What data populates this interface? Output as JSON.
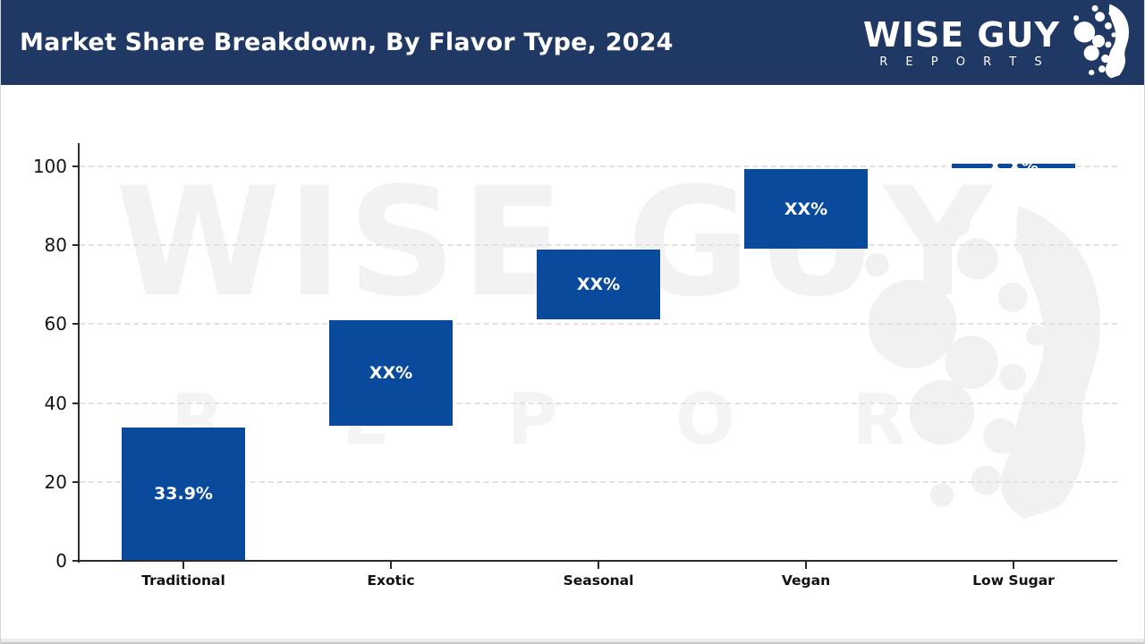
{
  "header": {
    "title": "Market Share Breakdown, By Flavor Type, 2024",
    "background_color": "#203864",
    "logo": {
      "primary": "WISE GUY",
      "secondary": "R E P O R T S"
    }
  },
  "watermark": {
    "primary": "WISE GUY",
    "secondary": "R E P O R T S"
  },
  "colors": {
    "header_background": "#203864",
    "bar_fill": "#0a4a9d",
    "bar_label": "#ffffff",
    "gridline": "#e2e2e2",
    "axis": "#2b2b2b",
    "tick_label": "#141414",
    "watermark": "#f2f2f2"
  },
  "chart_data": {
    "type": "bar",
    "variant": "waterfall",
    "title": "Market Share Breakdown, By Flavor Type, 2024",
    "categories": [
      "Traditional",
      "Exotic",
      "Seasonal",
      "Vegan",
      "Low Sugar"
    ],
    "bars": [
      {
        "category": "Traditional",
        "start": 0,
        "end": 33.9,
        "value": 33.9,
        "label": "33.9%"
      },
      {
        "category": "Exotic",
        "start": 34.2,
        "end": 61.1,
        "value": 26.9,
        "label": "XX%"
      },
      {
        "category": "Seasonal",
        "start": 61.3,
        "end": 78.9,
        "value": 17.6,
        "label": "XX%"
      },
      {
        "category": "Vegan",
        "start": 79.1,
        "end": 99.3,
        "value": 20.2,
        "label": "XX%"
      },
      {
        "category": "Low Sugar",
        "start": 99.5,
        "end": 100.6,
        "value": 1.1,
        "label": "X.X%"
      }
    ],
    "y_ticks": [
      0,
      20,
      40,
      60,
      80,
      100
    ],
    "ylim": [
      0,
      105.8
    ],
    "xlabel": "",
    "ylabel": "",
    "grid": "horizontal-dashed",
    "legend": "none",
    "bar_color": "#0a4a9d",
    "label_color": "#ffffff"
  }
}
